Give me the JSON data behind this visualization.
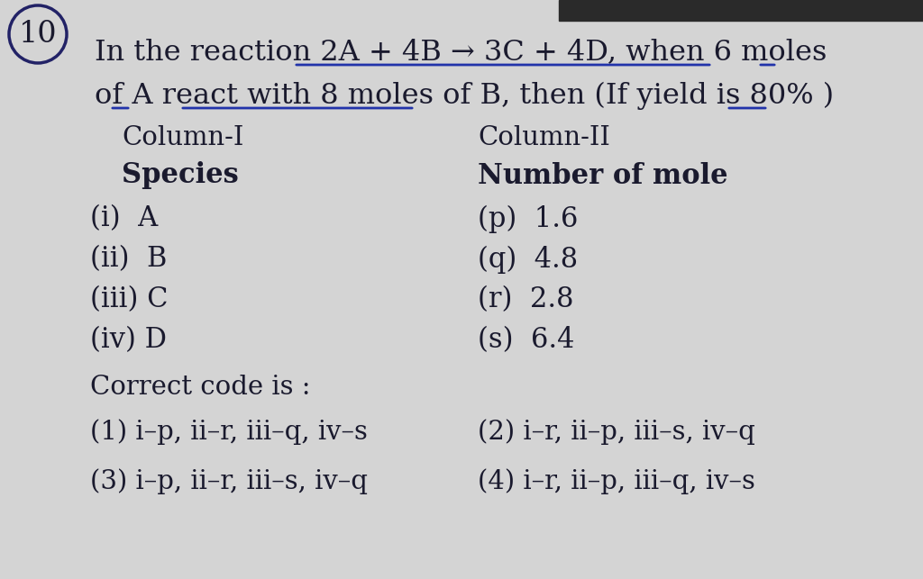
{
  "background_color": "#d4d4d4",
  "text_color": "#1a1a2e",
  "dark_bar_color": "#2a2a2a",
  "underline_color": "#2233aa",
  "question_number": "10",
  "col1_header": "Column-I",
  "col2_header": "Column-II",
  "col1_subheader": "Species",
  "col2_subheader": "Number of mole",
  "col1_items": [
    "(i)  A",
    "(ii)  B",
    "(iii) C",
    "(iv) D"
  ],
  "col2_items": [
    "(p)  1.6",
    "(q)  4.8",
    "(r)  2.8",
    "(s)  6.4"
  ],
  "correct_code_label": "Correct code is :",
  "options": [
    [
      "(1) i–p, ii–r, iii–q, iv–s",
      "(2) i–r, ii–p, iii–s, iv–q"
    ],
    [
      "(3) i–p, ii–r, iii–s, iv–q",
      "(4) i–r, ii–p, iii–q, iv–s"
    ]
  ],
  "line1_prefix": "In the reaction ",
  "line1_equation": "2A + 4B → 3C + 4D",
  "line1_suffix1": ", when ",
  "line1_six": "6",
  "line1_suffix2": " moles",
  "line2_prefix": "of ",
  "line2_A": "A",
  "line2_middle": " react with ",
  "line2_underlined": "8 moles of B",
  "line2_suffix": ", then (If yield is ",
  "line2_80": "80%",
  "line2_end": " )"
}
